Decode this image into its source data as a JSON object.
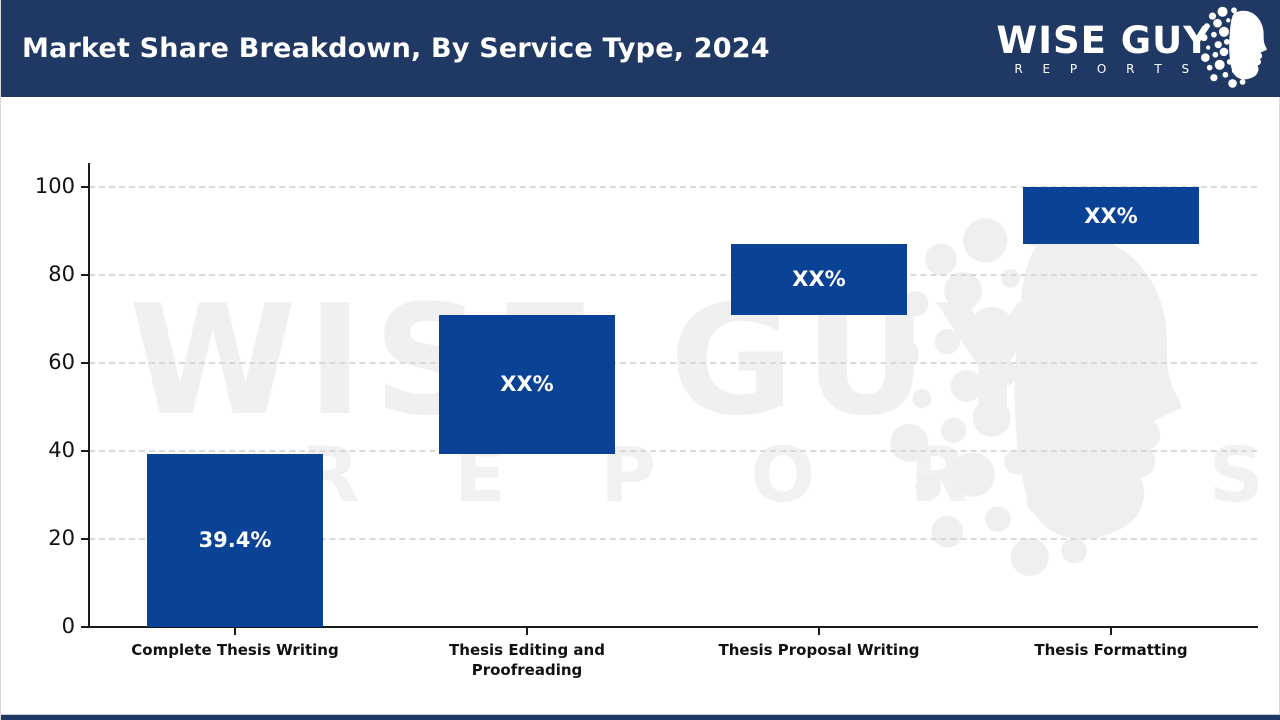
{
  "header": {
    "title": "Market Share Breakdown, By Service Type, 2024",
    "logo": {
      "name_line": "WISE GUY",
      "sub_line": "R E P O R T S"
    }
  },
  "watermark": {
    "line1": "WISE GUY",
    "line2": "R E P O R T S"
  },
  "chart_data": {
    "type": "bar",
    "subtype": "waterfall",
    "title": "Market Share Breakdown, By Service Type, 2024",
    "categories": [
      "Complete Thesis Writing",
      "Thesis Editing and Proofreading",
      "Thesis Proposal Writing",
      "Thesis Formatting"
    ],
    "segments": [
      {
        "category": "Complete Thesis Writing",
        "start": 0,
        "end": 39.4,
        "label": "39.4%"
      },
      {
        "category": "Thesis Editing and Proofreading",
        "start": 39.4,
        "end": 71,
        "label": "XX%"
      },
      {
        "category": "Thesis Proposal Writing",
        "start": 71,
        "end": 87,
        "label": "XX%"
      },
      {
        "category": "Thesis Formatting",
        "start": 87,
        "end": 100,
        "label": "XX%"
      }
    ],
    "yticks": [
      0,
      20,
      40,
      60,
      80,
      100
    ],
    "ylim": [
      0,
      105
    ],
    "xlabel": "",
    "ylabel": "",
    "grid": "horizontal-dashed",
    "legend": "none"
  },
  "colors": {
    "header_bg": "#203864",
    "bar": "#0a4296",
    "bar_label": "#ffffff",
    "grid": "#d9d9d9",
    "axis": "#1a1a1a",
    "text": "#111111",
    "watermark": "#f0f0f0",
    "footer_bg": "#203864"
  }
}
